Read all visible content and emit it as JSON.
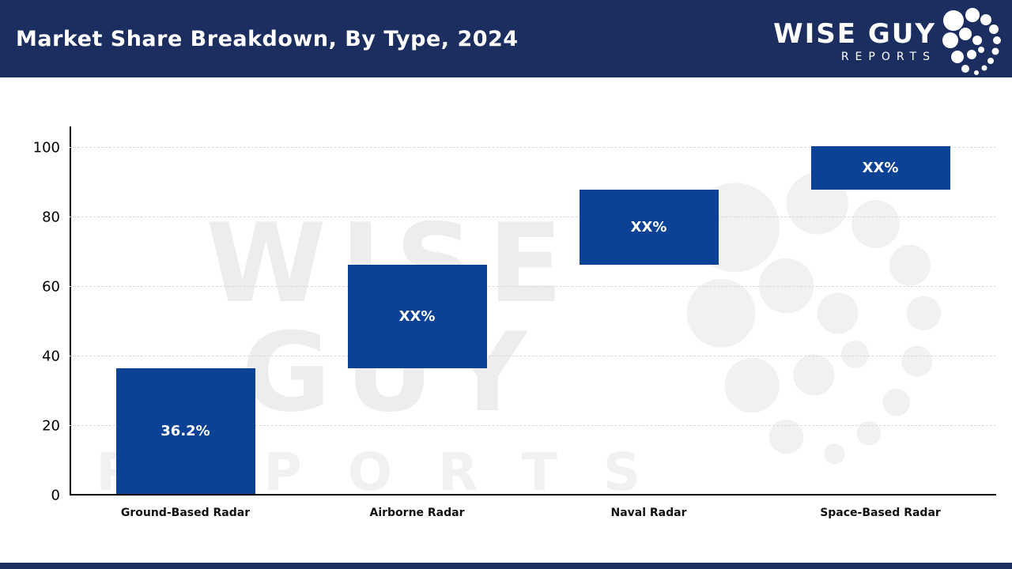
{
  "header": {
    "title": "Market Share Breakdown, By Type, 2024",
    "logo": {
      "line1": "WISE GUY",
      "line2": "REPORTS"
    }
  },
  "watermark": {
    "line1": "WISE GUY",
    "line2": "REPORTS"
  },
  "colors": {
    "header_bg": "#1b2e5f",
    "bar": "#0c4296",
    "bar_label": "#ffffff",
    "grid": "#d8d8d8",
    "axis": "#000000"
  },
  "chart_data": {
    "type": "waterfall",
    "title": "Market Share Breakdown, By Type, 2024",
    "categories": [
      "Ground-Based Radar",
      "Airborne Radar",
      "Naval Radar",
      "Space-Based Radar"
    ],
    "segments": [
      {
        "category": "Ground-Based Radar",
        "from": 0,
        "to": 36.2,
        "label": "36.2%"
      },
      {
        "category": "Airborne Radar",
        "from": 36.2,
        "to": 66,
        "label": "XX%"
      },
      {
        "category": "Naval Radar",
        "from": 66,
        "to": 87.5,
        "label": "XX%"
      },
      {
        "category": "Space-Based Radar",
        "from": 87.5,
        "to": 100,
        "label": "XX%"
      }
    ],
    "yticks": [
      0,
      20,
      40,
      60,
      80,
      100
    ],
    "ylim": [
      0,
      100
    ],
    "xlabel": "",
    "ylabel": "",
    "grid": true,
    "grid_style": "dashed-horizontal",
    "legend": "none"
  }
}
